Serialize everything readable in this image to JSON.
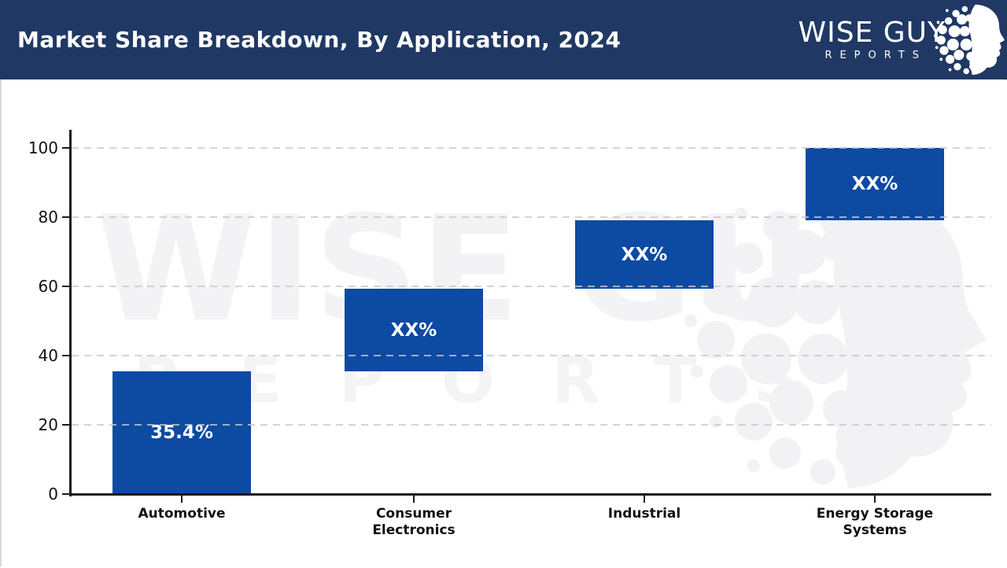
{
  "header": {
    "title": "Market Share Breakdown, By Application, 2024",
    "logo": {
      "line1": "WISE GUY",
      "line2": "REPORTS"
    }
  },
  "watermark": {
    "line1": "WISE GUY",
    "line2": "REPORTS"
  },
  "colors": {
    "header_bg": "#203864",
    "bar_blue": "#0d4aa1",
    "grid_gray": "#c8c8ce",
    "axis_black": "#1a1a1a",
    "watermark_gray": "#f3f3f6",
    "label_white": "#ffffff"
  },
  "chart_data": {
    "type": "bar",
    "subtype": "waterfall",
    "title": "Market Share Breakdown, By Application, 2024",
    "xlabel": "",
    "ylabel": "",
    "ylim": [
      0,
      105
    ],
    "yticks": [
      0,
      20,
      40,
      60,
      80,
      100
    ],
    "grid": "horizontal-dashed-over-bars",
    "legend": "none",
    "categories": [
      "Automotive",
      "Consumer Electronics",
      "Industrial",
      "Energy Storage Systems"
    ],
    "segments": [
      {
        "category": "Automotive",
        "label_lines": [
          "Automotive"
        ],
        "start": 0,
        "end": 35.4,
        "value_label": "35.4%"
      },
      {
        "category": "Consumer Electronics",
        "label_lines": [
          "Consumer",
          "Electronics"
        ],
        "start": 35.4,
        "end": 59.3,
        "value_label": "XX%"
      },
      {
        "category": "Industrial",
        "label_lines": [
          "Industrial"
        ],
        "start": 59.3,
        "end": 79.0,
        "value_label": "XX%"
      },
      {
        "category": "Energy Storage Systems",
        "label_lines": [
          "Energy Storage",
          "Systems"
        ],
        "start": 79.0,
        "end": 100,
        "value_label": "XX%"
      }
    ]
  }
}
